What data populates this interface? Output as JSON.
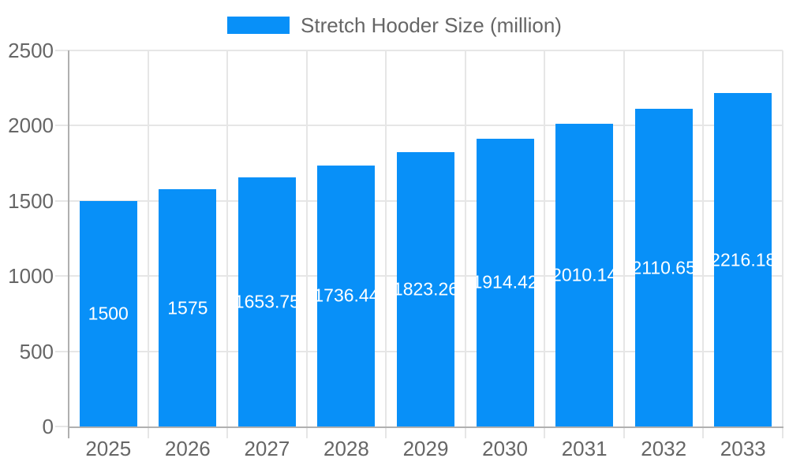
{
  "chart_data": {
    "type": "bar",
    "title": "",
    "xlabel": "",
    "ylabel": "",
    "legend": {
      "position": "top",
      "label": "Stretch Hooder Size (million)"
    },
    "categories": [
      "2025",
      "2026",
      "2027",
      "2028",
      "2029",
      "2030",
      "2031",
      "2032",
      "2033"
    ],
    "series": [
      {
        "name": "Stretch Hooder Size (million)",
        "values": [
          1500,
          1575,
          1653.75,
          1736.44,
          1823.26,
          1914.42,
          2010.14,
          2110.65,
          2216.18
        ],
        "color": "#0890f8"
      }
    ],
    "value_labels": [
      "1500",
      "1575",
      "1653.75",
      "1736.44",
      "1823.26",
      "1914.42",
      "2010.14",
      "2110.65",
      "2216.18"
    ],
    "ylim": [
      0,
      2500
    ],
    "yticks": [
      0,
      500,
      1000,
      1500,
      2000,
      2500
    ],
    "ytick_labels": [
      "0",
      "500",
      "1000",
      "1500",
      "2000",
      "2500"
    ],
    "grid": true,
    "colors": {
      "bar": "#0890f8",
      "grid": "#e6e6e6",
      "axis": "#b0b0b0",
      "tick_text": "#666666",
      "value_label_text": "#ffffff",
      "background": "#ffffff"
    }
  }
}
